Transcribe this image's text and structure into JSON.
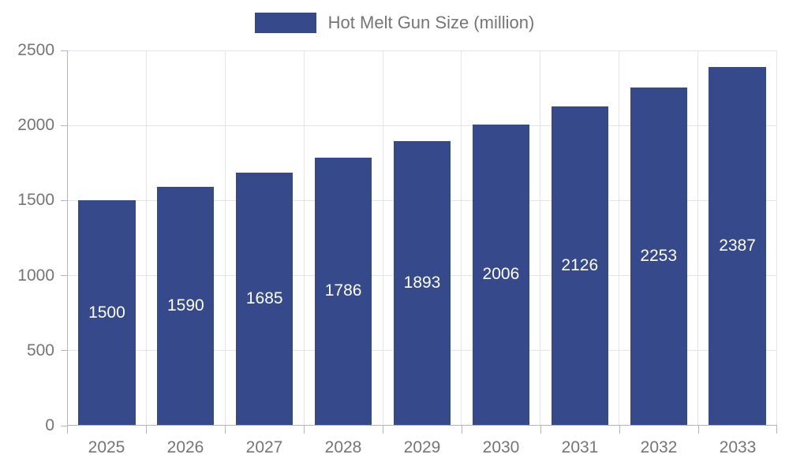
{
  "legend": {
    "label": "Hot Melt Gun Size (million)"
  },
  "colors": {
    "bar": "#36498b",
    "bar_label": "#ffffff",
    "axis_line": "#b4b4bc",
    "grid_line": "#e4e4e8",
    "tick_text": "#757575",
    "background": "#ffffff"
  },
  "chart_data": {
    "type": "bar",
    "title": "Hot Melt Gun Size (million)",
    "series_name": "Hot Melt Gun Size (million)",
    "categories": [
      "2025",
      "2026",
      "2027",
      "2028",
      "2029",
      "2030",
      "2031",
      "2032",
      "2033"
    ],
    "values": [
      1500,
      1590,
      1685,
      1786,
      1893,
      2006,
      2126,
      2253,
      2387
    ],
    "bar_labels": [
      "1500",
      "1590",
      "1685",
      "1786",
      "1893",
      "2006",
      "2126",
      "2253",
      "2387"
    ],
    "xlabel": "",
    "ylabel": "",
    "ylim": [
      0,
      2500
    ],
    "yticks": [
      0,
      500,
      1000,
      1500,
      2000,
      2500
    ],
    "grid": true,
    "legend_position": "top-center",
    "bar_color": "#36498b",
    "bar_label_position": "center"
  }
}
